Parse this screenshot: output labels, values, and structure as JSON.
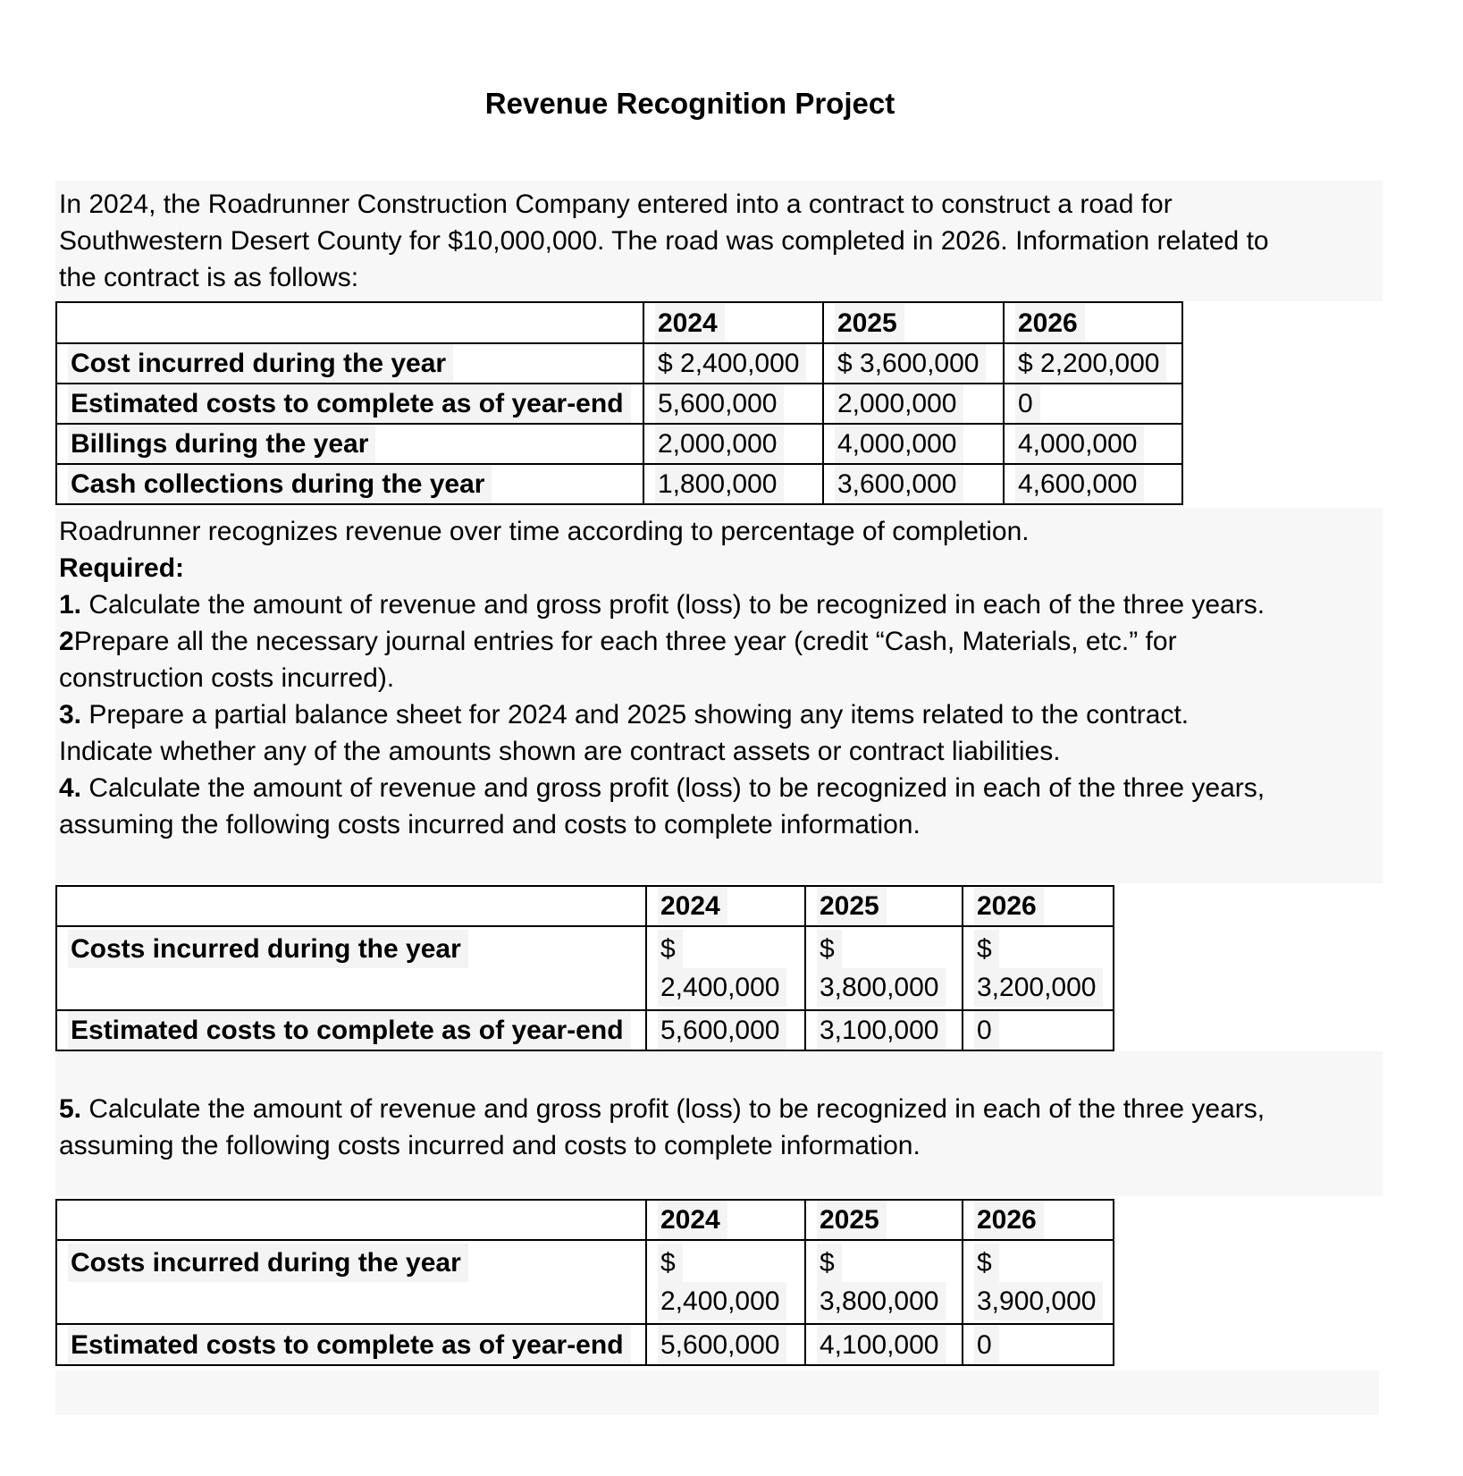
{
  "title": "Revenue Recognition Project",
  "intro": {
    "line1": "In 2024, the Roadrunner Construction Company entered into a contract to construct a road for",
    "line2": "Southwestern Desert County for $10,000,000. The road was completed in 2026. Information related to",
    "line3": "the contract is as follows:"
  },
  "note_after_table1": "Roadrunner recognizes revenue over time according to percentage of completion.",
  "required_label": "Required:",
  "requirements": [
    {
      "num": "1.",
      "line1": " Calculate the amount of revenue and gross profit (loss) to be recognized in each of the three years."
    },
    {
      "num": "2",
      "line1": "Prepare all the necessary journal entries for each three year (credit “Cash, Materials, etc.” for",
      "line2": "construction costs incurred)."
    },
    {
      "num": "3.",
      "line1": " Prepare a partial balance sheet for 2024 and 2025 showing any items related to the contract.",
      "line2": "Indicate whether any of the amounts shown are contract assets or contract liabilities."
    },
    {
      "num": "4.",
      "line1": " Calculate the amount of revenue and gross profit (loss) to be recognized in each of the three years,",
      "line2": "assuming the following costs incurred and costs to complete information."
    },
    {
      "num": "5.",
      "line1": " Calculate the amount of revenue and gross profit (loss) to be recognized in each of the three years,",
      "line2": "assuming the following costs incurred and costs to complete information."
    }
  ],
  "table1": {
    "years": [
      "2024",
      "2025",
      "2026"
    ],
    "rows": [
      {
        "label": "Cost incurred during the year",
        "values": [
          "$ 2,400,000",
          "$ 3,600,000",
          "$ 2,200,000"
        ]
      },
      {
        "label": "Estimated costs to complete as of year-end",
        "values": [
          "5,600,000",
          "2,000,000",
          "0"
        ]
      },
      {
        "label": "Billings during the year",
        "values": [
          "2,000,000",
          "4,000,000",
          "4,000,000"
        ]
      },
      {
        "label": "Cash collections during the year",
        "values": [
          "1,800,000",
          "3,600,000",
          "4,600,000"
        ]
      }
    ]
  },
  "table2": {
    "years": [
      "2024",
      "2025",
      "2026"
    ],
    "row1": {
      "label": "Costs incurred during the year",
      "cells": [
        {
          "top": "$",
          "bottom": "2,400,000"
        },
        {
          "top": "$",
          "bottom": "3,800,000"
        },
        {
          "top": "$",
          "bottom": "3,200,000"
        }
      ]
    },
    "row2": {
      "label": "Estimated costs to complete as of year-end",
      "values": [
        "5,600,000",
        "3,100,000",
        "0"
      ]
    }
  },
  "table3": {
    "years": [
      "2024",
      "2025",
      "2026"
    ],
    "row1": {
      "label": "Costs incurred during the year",
      "cells": [
        {
          "top": "$",
          "bottom": "2,400,000"
        },
        {
          "top": "$",
          "bottom": "3,800,000"
        },
        {
          "top": "$",
          "bottom": "3,900,000"
        }
      ]
    },
    "row2": {
      "label": "Estimated costs to complete as of year-end",
      "values": [
        "5,600,000",
        "4,100,000",
        "0"
      ]
    }
  }
}
